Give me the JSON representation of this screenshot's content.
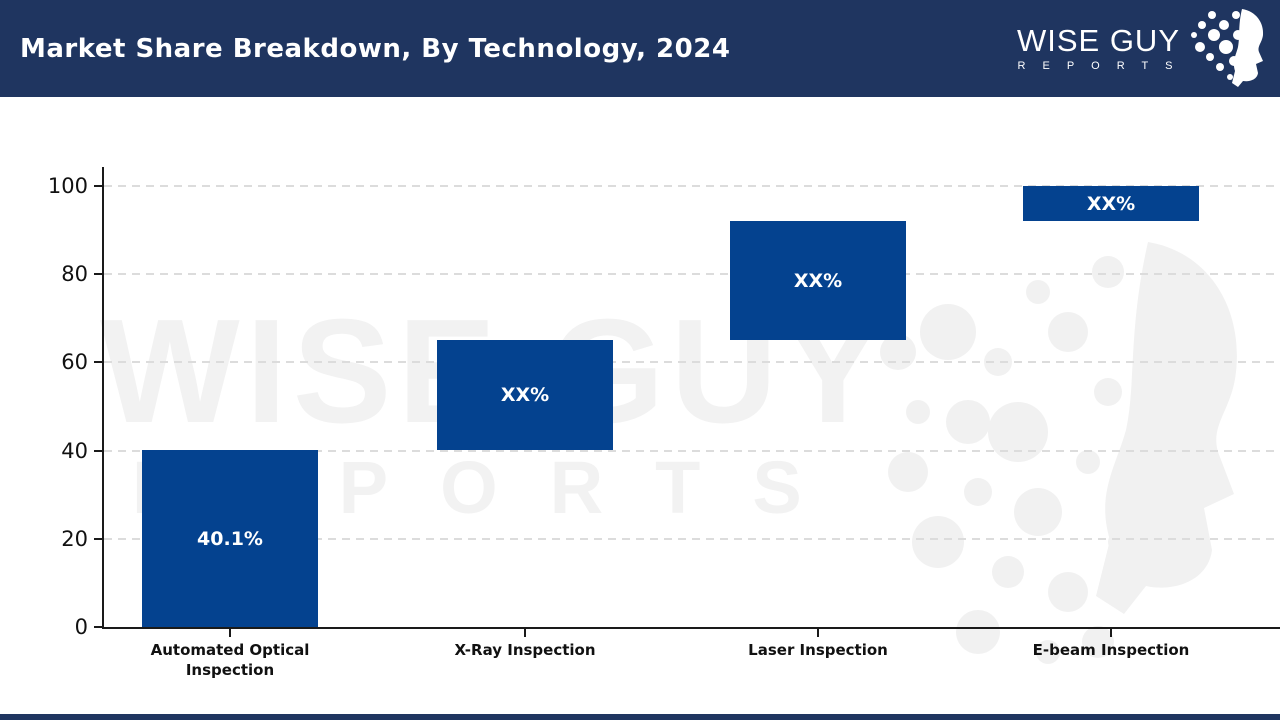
{
  "header": {
    "title": "Market Share Breakdown, By Technology, 2024",
    "bg_color": "#1f3560",
    "logo": {
      "brand_line1": "WISE GUY",
      "brand_line2": "R E P O R T S"
    }
  },
  "watermark": {
    "line1": "WISE GUY",
    "line2": "REPORTS"
  },
  "chart_data": {
    "type": "bar",
    "variant": "waterfall",
    "title": "Market Share Breakdown, By Technology, 2024",
    "categories": [
      "Automated Optical Inspection",
      "X-Ray Inspection",
      "Laser Inspection",
      "E-beam Inspection"
    ],
    "segments": [
      {
        "category": "Automated Optical Inspection",
        "start": 0,
        "end": 40.1,
        "label": "40.1%"
      },
      {
        "category": "X-Ray Inspection",
        "start": 40.1,
        "end": 65,
        "label": "XX%"
      },
      {
        "category": "Laser Inspection",
        "start": 65,
        "end": 92,
        "label": "XX%"
      },
      {
        "category": "E-beam Inspection",
        "start": 92,
        "end": 100,
        "label": "XX%"
      }
    ],
    "yticks": [
      0,
      20,
      40,
      60,
      80,
      100
    ],
    "ylim": [
      0,
      105
    ],
    "xlabel": "",
    "ylabel": "",
    "legend": "none",
    "grid": "horizontal-dashed",
    "bar_color": "#04428f",
    "bar_label_color": "#ffffff",
    "grid_color": "#dcdcdc",
    "axis_color": "#1a1a1a"
  }
}
